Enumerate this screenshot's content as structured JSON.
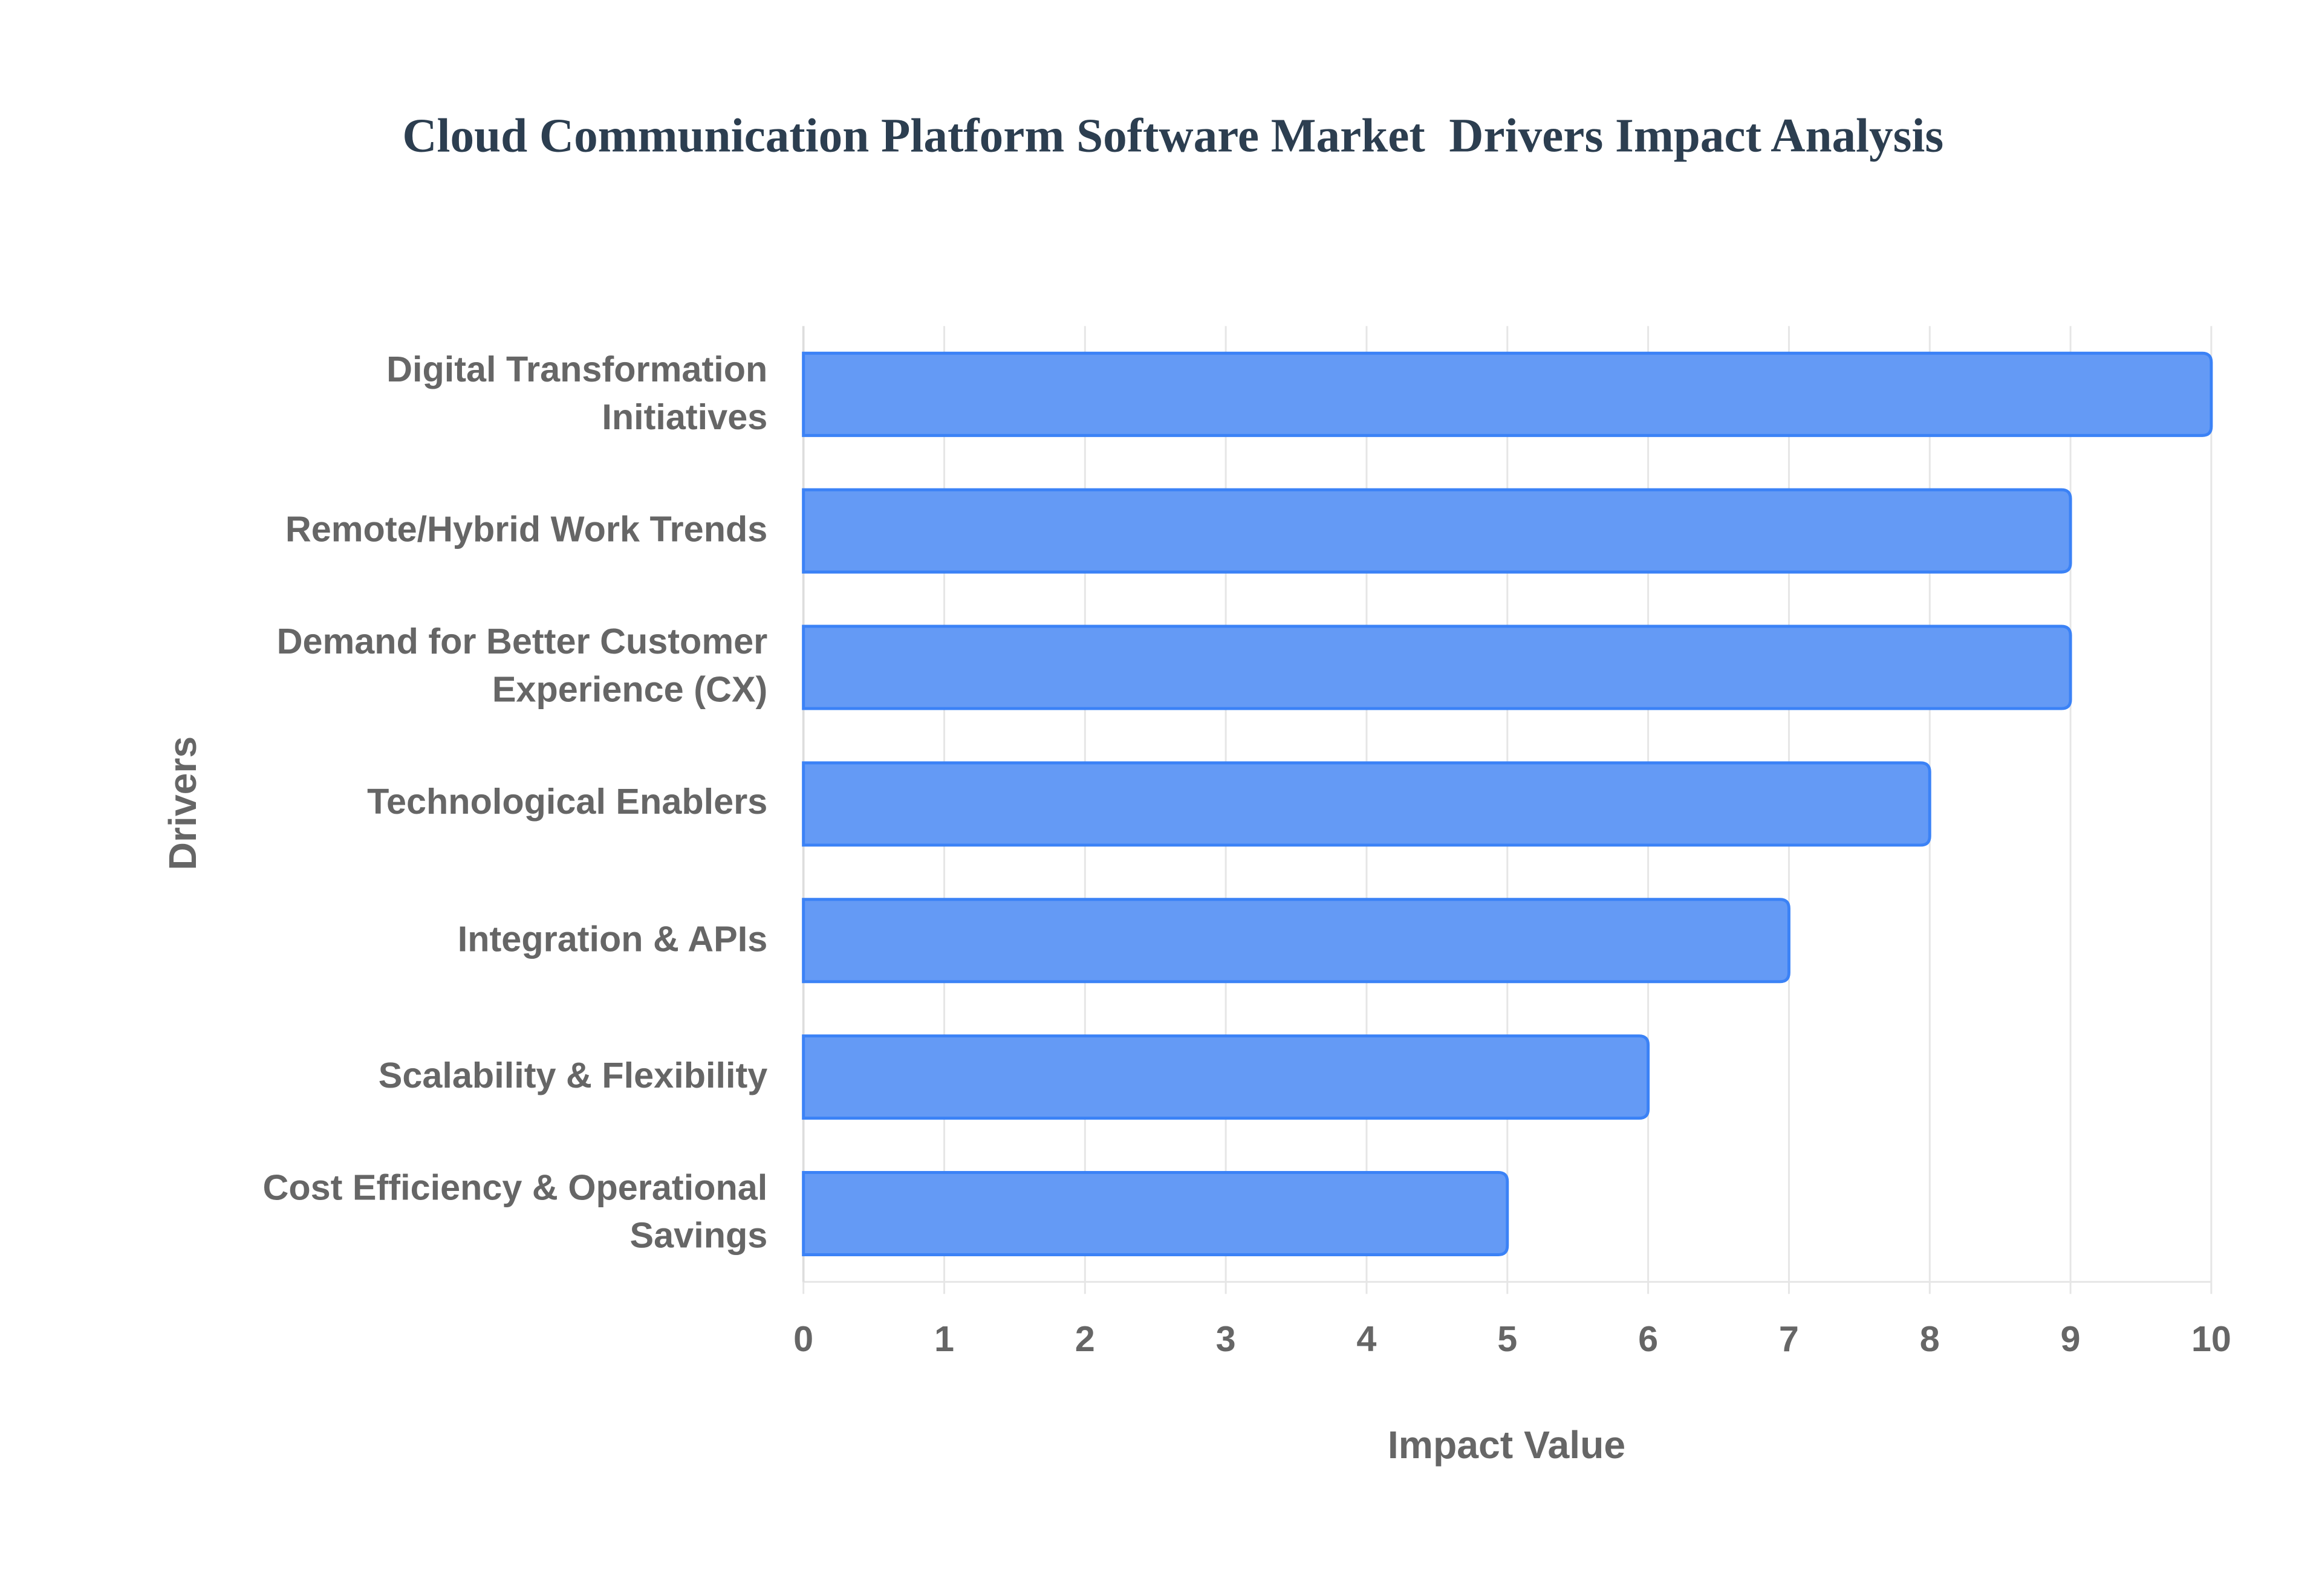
{
  "chart_data": {
    "type": "bar",
    "orientation": "horizontal",
    "title": "Cloud Communication Platform Software Market  Drivers Impact Analysis",
    "x_label": "Impact Value",
    "y_label": "Drivers",
    "categories": [
      "Digital Transformation Initiatives",
      "Remote/Hybrid Work Trends",
      "Demand for Better Customer Experience (CX)",
      "Technological Enablers",
      "Integration & APIs",
      "Scalability & Flexibility",
      "Cost Efficiency & Operational Savings"
    ],
    "values": [
      10,
      9,
      9,
      8,
      7,
      6,
      5
    ],
    "color": "#6198f5",
    "xlim": [
      0,
      10
    ],
    "xticks": [
      0,
      1,
      2,
      3,
      4,
      5,
      6,
      7,
      8,
      9,
      10
    ],
    "grid": true
  }
}
